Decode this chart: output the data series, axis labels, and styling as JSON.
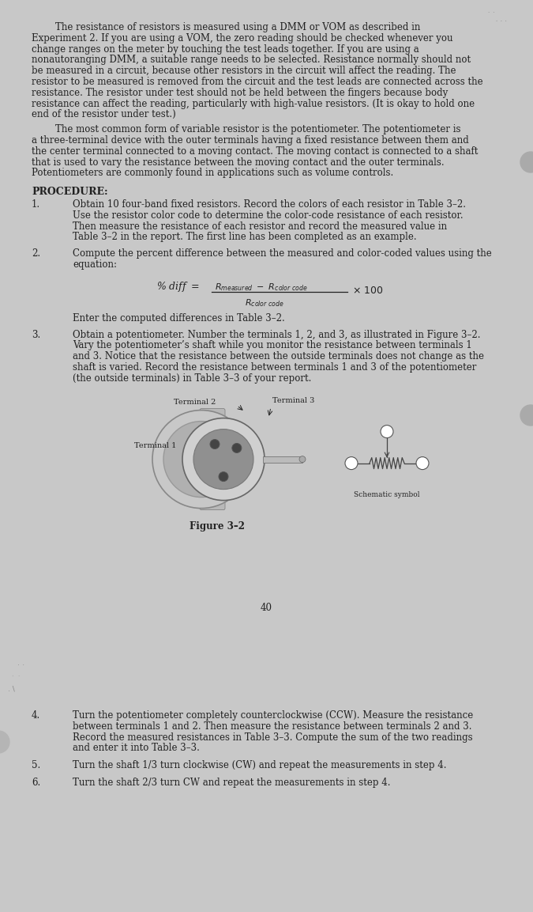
{
  "page_bg": "#c8c8c8",
  "page1_bg": "#f2f1ed",
  "page2_bg": "#e8e7e2",
  "page_width": 6.75,
  "page_height": 11.53,
  "text_color": "#222222",
  "font_size": 8.5,
  "para1_lines": [
    "        The resistance of resistors is measured using a DMM or VOM as described in",
    "Experiment 2. If you are using a VOM, the zero reading should be checked whenever you",
    "change ranges on the meter by touching the test leads together. If you are using a",
    "nonautoranging DMM, a suitable range needs to be selected. Resistance normally should not",
    "be measured in a circuit, because other resistors in the circuit will affect the reading. The",
    "resistor to be measured is removed from the circuit and the test leads are connected across the",
    "resistance. The resistor under test should not be held between the fingers because body",
    "resistance can affect the reading, particularly with high-value resistors. (It is okay to hold one",
    "end of the resistor under test.)"
  ],
  "para2_lines": [
    "        The most common form of variable resistor is the potentiometer. The potentiometer is",
    "a three-terminal device with the outer terminals having a fixed resistance between them and",
    "the center terminal connected to a moving contact. The moving contact is connected to a shaft",
    "that is used to vary the resistance between the moving contact and the outer terminals.",
    "Potentiometers are commonly found in applications such as volume controls."
  ],
  "procedure_label": "PROCEDURE:",
  "item1_num": "1.",
  "item1_lines": [
    "Obtain 10 four-band fixed resistors. Record the colors of each resistor in Table 3–2.",
    "Use the resistor color code to determine the color-code resistance of each resistor.",
    "Then measure the resistance of each resistor and record the measured value in",
    "Table 3–2 in the report. The first line has been completed as an example."
  ],
  "item2_num": "2.",
  "item2_lines": [
    "Compute the percent difference between the measured and color-coded values using the",
    "equation:"
  ],
  "item2_follow": "Enter the computed differences in Table 3–2.",
  "item3_num": "3.",
  "item3_lines": [
    "Obtain a potentiometer. Number the terminals 1, 2, and 3, as illustrated in Figure 3–2.",
    "Vary the potentiometer’s shaft while you monitor the resistance between terminals 1",
    "and 3. Notice that the resistance between the outside terminals does not change as the",
    "shaft is varied. Record the resistance between terminals 1 and 3 of the potentiometer",
    "(the outside terminals) in Table 3–3 of your report."
  ],
  "terminal1_label": "Terminal 1",
  "terminal2_label": "Terminal 2",
  "terminal3_label": "Terminal 3",
  "schematic_label": "Schematic symbol",
  "figure_label": "Figure 3–2",
  "page_num": "40",
  "item4_num": "4.",
  "item4_lines": [
    "Turn the potentiometer completely counterclockwise (CCW). Measure the resistance",
    "between terminals 1 and 2. Then measure the resistance between terminals 2 and 3.",
    "Record the measured resistances in Table 3–3. Compute the sum of the two readings",
    "and enter it into Table 3–3."
  ],
  "item5_num": "5.",
  "item5_text": "Turn the shaft 1/3 turn clockwise (CW) and repeat the measurements in step 4.",
  "item6_num": "6.",
  "item6_text": "Turn the shaft 2/3 turn CW and repeat the measurements in step 4."
}
